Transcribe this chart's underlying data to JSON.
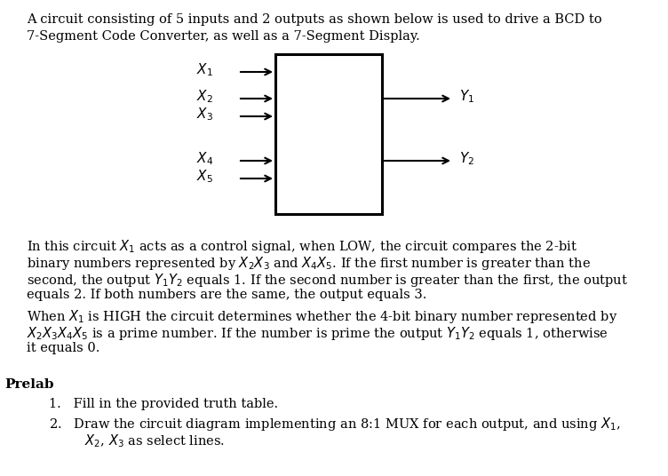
{
  "bg_color": "#ffffff",
  "title_line1": "A circuit consisting of 5 inputs and 2 outputs as shown below is used to drive a BCD to",
  "title_line2": "7-Segment Code Converter, as well as a 7-Segment Display.",
  "input_labels_math": [
    "$X_1$",
    "$X_2$",
    "$X_3$",
    "$X_4$",
    "$X_5$"
  ],
  "output_labels_math": [
    "$Y_1$",
    "$Y_2$"
  ],
  "paragraph1_lines": [
    "In this circuit $X_1$ acts as a control signal, when LOW, the circuit compares the 2-bit",
    "binary numbers represented by $X_2X_3$ and $X_4X_5$. If the first number is greater than the",
    "second, the output $Y_1Y_2$ equals 1. If the second number is greater than the first, the output",
    "equals 2. If both numbers are the same, the output equals 3."
  ],
  "paragraph2_lines": [
    "When $X_1$ is HIGH the circuit determines whether the 4-bit binary number represented by",
    "$X_2X_3X_4X_5$ is a prime number. If the number is prime the output $Y_1Y_2$ equals 1, otherwise",
    "it equals 0."
  ],
  "prelab_label": "Prelab",
  "item1": "1.   Fill in the provided truth table.",
  "item2_line1": "2.   Draw the circuit diagram implementing an 8:1 MUX for each output, and using $X_1$,",
  "item2_line2": "      $X_2$, $X_3$ as select lines.",
  "font_size": 10.5,
  "font_size_circuit": 11
}
